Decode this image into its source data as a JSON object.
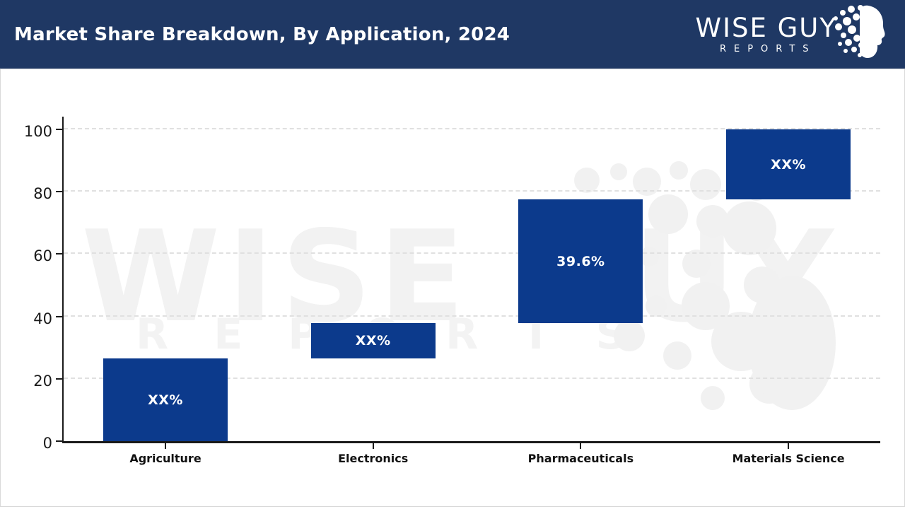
{
  "header": {
    "title": "Market Share Breakdown, By Application, 2024",
    "logo": {
      "line1": "WISE GUY",
      "line2": "REPORTS"
    }
  },
  "watermark": {
    "line1": "WISE GUY",
    "line2": "REPORTS"
  },
  "chart_data": {
    "type": "bar",
    "subtype": "waterfall",
    "title": "Market Share Breakdown, By Application, 2024",
    "categories": [
      "Agriculture",
      "Electronics",
      "Pharmaceuticals",
      "Materials Science"
    ],
    "segments": [
      {
        "category": "Agriculture",
        "start": 0,
        "end": 26.5,
        "value": 26.5,
        "label": "XX%"
      },
      {
        "category": "Electronics",
        "start": 26.5,
        "end": 37.9,
        "value": 11.4,
        "label": "XX%"
      },
      {
        "category": "Pharmaceuticals",
        "start": 37.9,
        "end": 77.5,
        "value": 39.6,
        "label": "39.6%"
      },
      {
        "category": "Materials Science",
        "start": 77.5,
        "end": 100,
        "value": 22.5,
        "label": "XX%"
      }
    ],
    "yticks": [
      0,
      20,
      40,
      60,
      80,
      100
    ],
    "ylim": [
      0,
      104.8
    ],
    "xlabel": "",
    "ylabel": "",
    "grid": "horizontal-dashed",
    "legend": "none",
    "bar_color": "#0c3a8c",
    "bar_label_color": "#ffffff"
  },
  "colors": {
    "header_bg": "#1f3864",
    "bar": "#0c3a8c",
    "grid": "#e0e0e0",
    "axis": "#1a1a1a",
    "watermark": "#f2f2f2"
  }
}
